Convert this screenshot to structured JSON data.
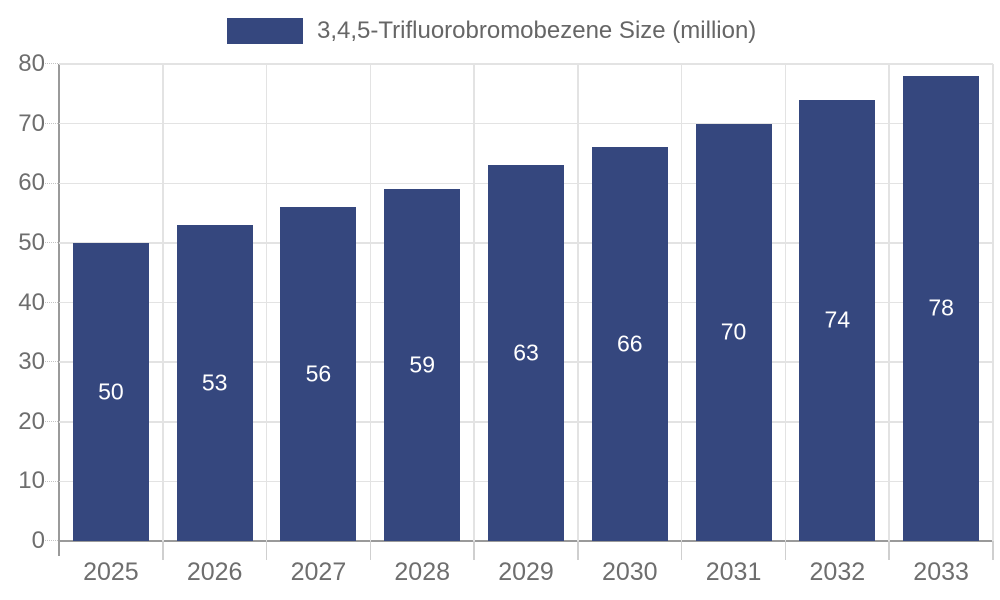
{
  "chart_data": {
    "type": "bar",
    "legend_label": "3,4,5-Trifluorobromobezene Size (million)",
    "categories": [
      "2025",
      "2026",
      "2027",
      "2028",
      "2029",
      "2030",
      "2031",
      "2032",
      "2033"
    ],
    "values": [
      50,
      53,
      56,
      59,
      63,
      66,
      70,
      74,
      78
    ],
    "value_labels_shown": true,
    "xlabel": "",
    "ylabel": "",
    "ylim": [
      0,
      80
    ],
    "yticks": [
      0,
      10,
      20,
      30,
      40,
      50,
      60,
      70,
      80
    ],
    "grid": {
      "horizontal": true,
      "vertical": true
    },
    "legend_position": "top-center",
    "colors": {
      "bar": "#35477E",
      "grid": "#e3e3e3",
      "axis": "#9a9a9a",
      "tick": "#cfcfcf",
      "tick_label": "#6e6e6e",
      "legend_text": "#666666",
      "value_label": "#ffffff",
      "background": "#ffffff"
    }
  }
}
